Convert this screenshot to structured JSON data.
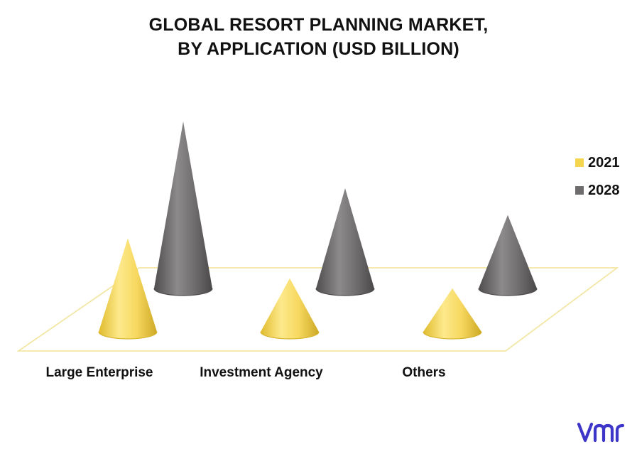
{
  "title_line1": "GLOBAL RESORT PLANNING MARKET,",
  "title_line2": "BY APPLICATION (USD BILLION)",
  "colors": {
    "series_2021": "#f5d54e",
    "series_2028": "#6e6c6c",
    "floor_stroke": "#f3e7a6",
    "logo": "#3d36c9"
  },
  "chart_data": {
    "type": "bar",
    "shape": "cone-3d",
    "categories": [
      "Large Enterprise",
      "Investment Agency",
      "Others"
    ],
    "series": [
      {
        "name": "2021",
        "values": [
          2.8,
          1.6,
          1.3
        ]
      },
      {
        "name": "2028",
        "values": [
          5.0,
          3.0,
          2.2
        ]
      }
    ],
    "title": "GLOBAL RESORT PLANNING MARKET, BY APPLICATION (USD BILLION)",
    "legend_position": "right",
    "grid": false
  },
  "logo": {
    "icon": "vmr-logo",
    "text": "vmr"
  }
}
